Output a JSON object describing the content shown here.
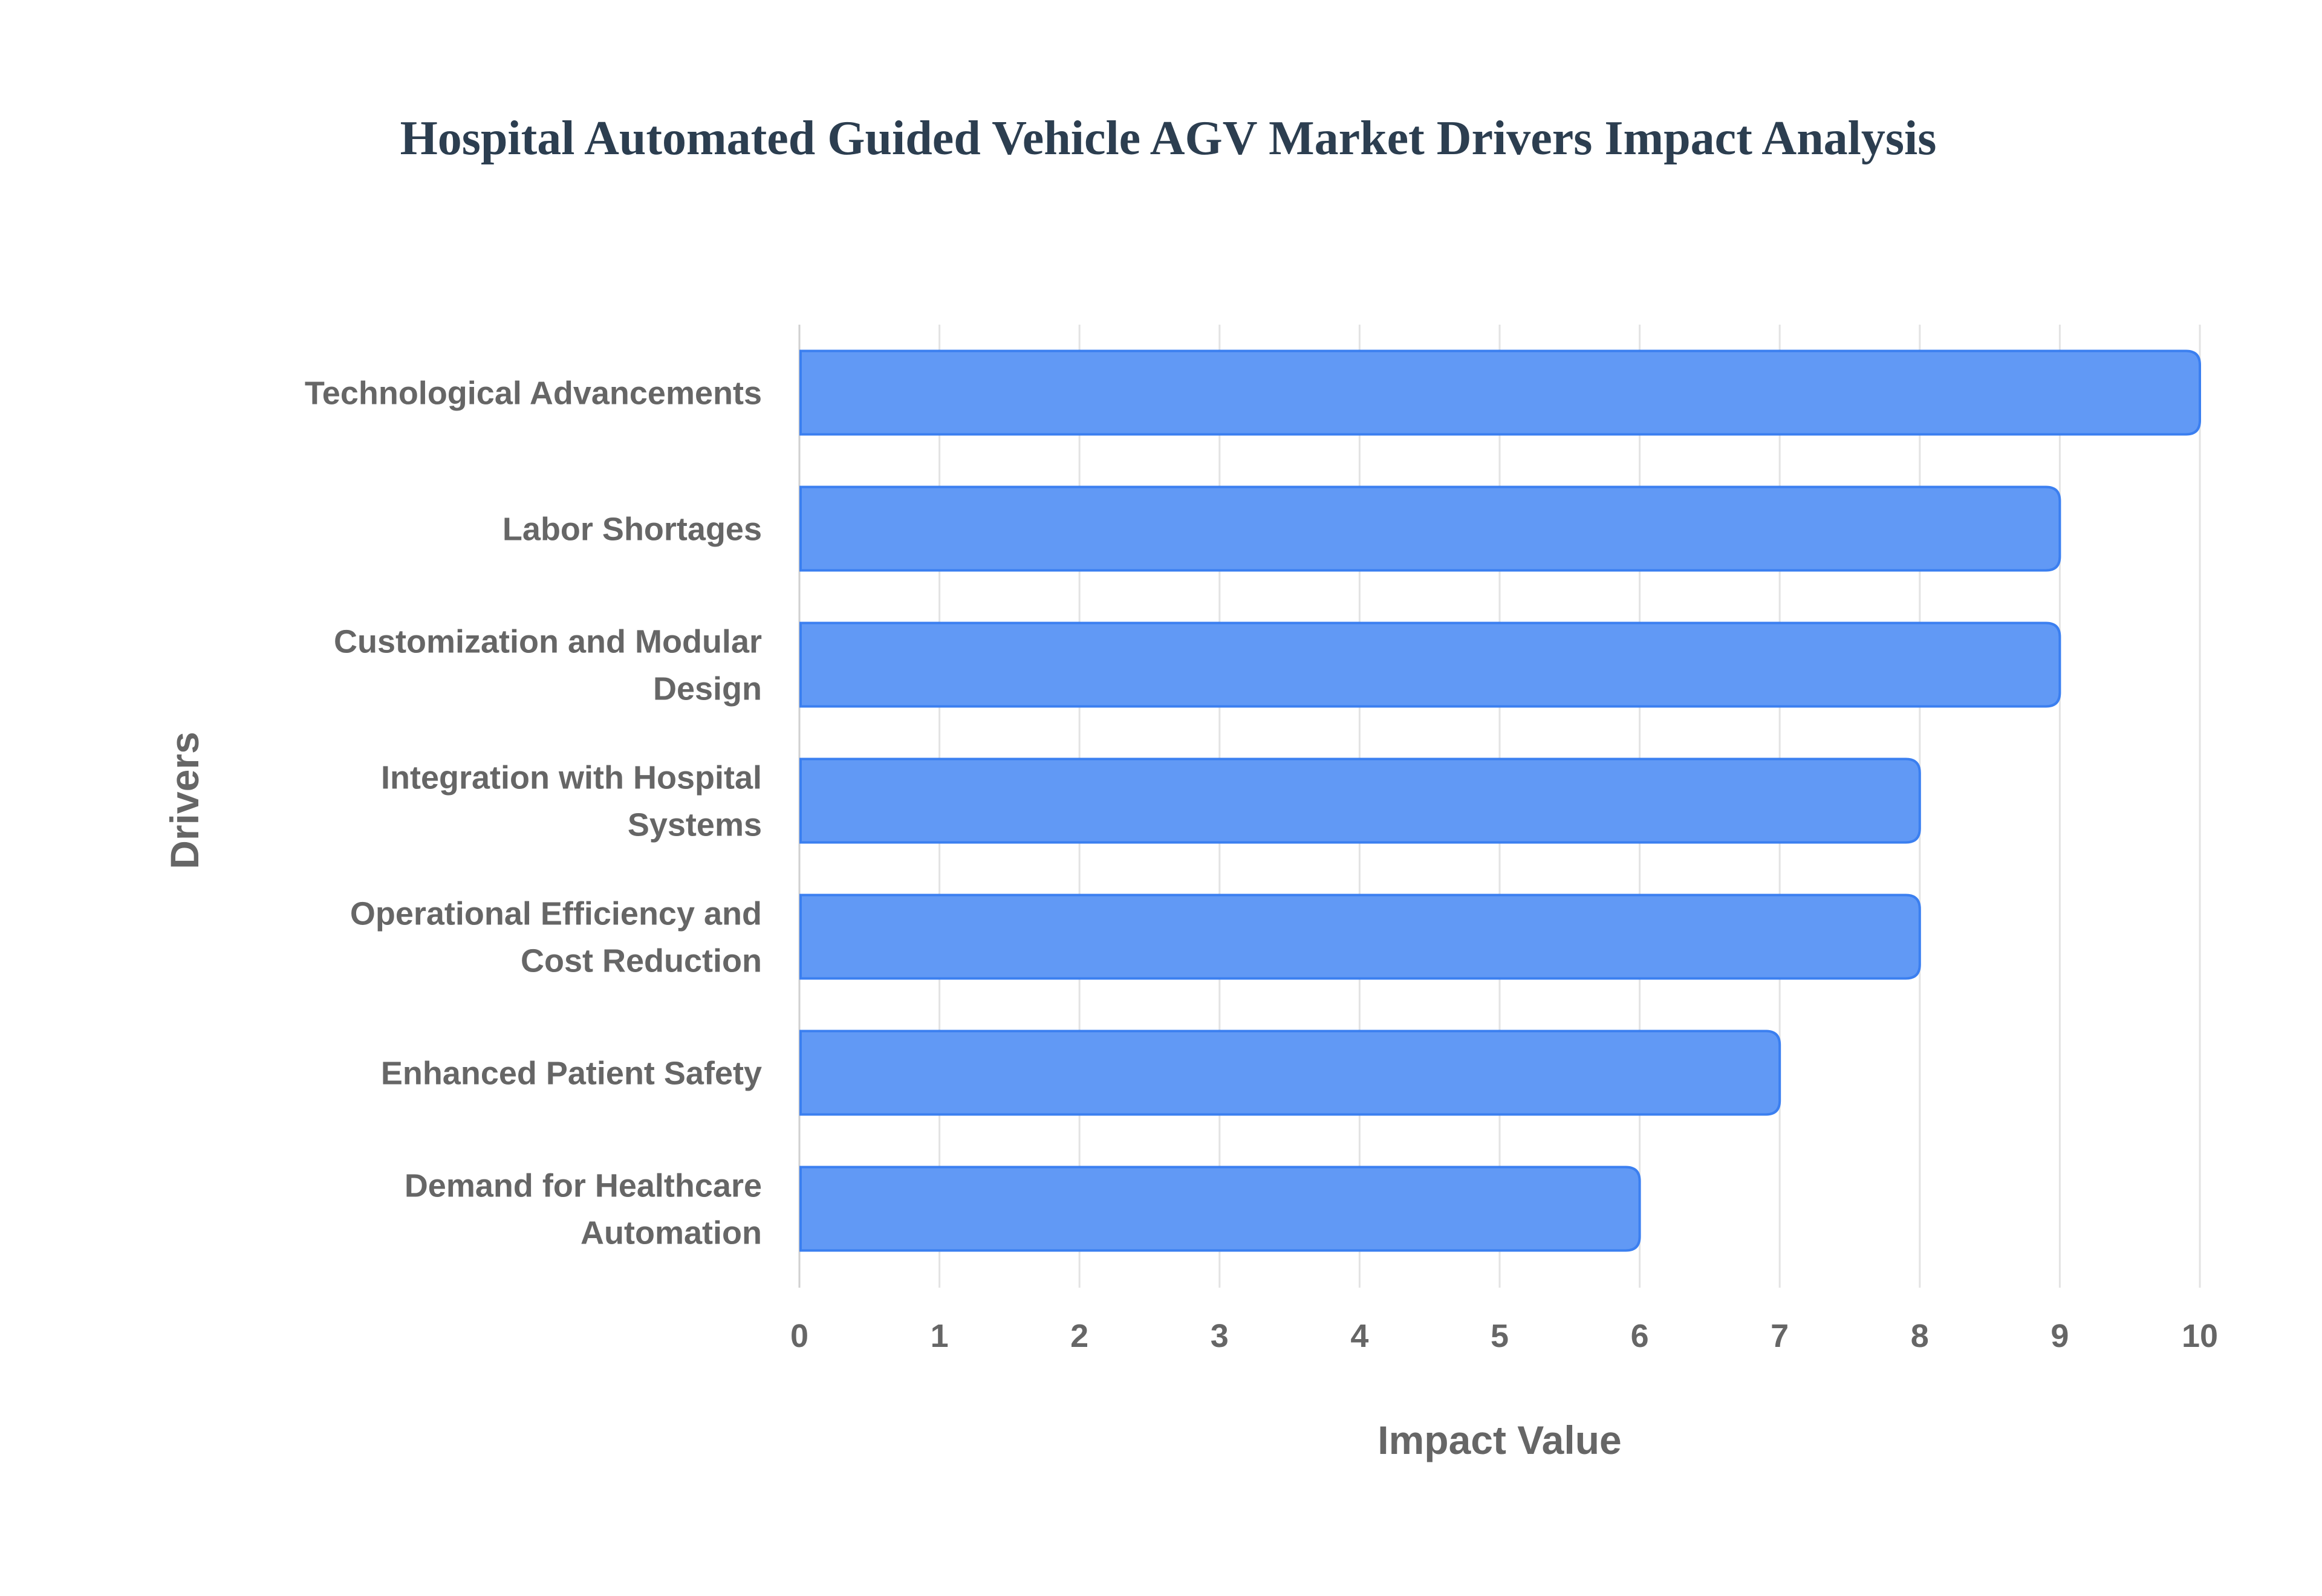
{
  "chart_data": {
    "type": "bar",
    "orientation": "horizontal",
    "title": "Hospital Automated Guided Vehicle AGV Market Drivers Impact Analysis",
    "xlabel": "Impact Value",
    "ylabel": "Drivers",
    "categories": [
      [
        "Technological Advancements"
      ],
      [
        "Labor Shortages"
      ],
      [
        "Customization and Modular",
        "Design"
      ],
      [
        "Integration with Hospital",
        "Systems"
      ],
      [
        "Operational Efficiency and",
        "Cost Reduction"
      ],
      [
        "Enhanced Patient Safety"
      ],
      [
        "Demand for Healthcare",
        "Automation"
      ]
    ],
    "values": [
      10,
      9,
      9,
      8,
      8,
      7,
      6
    ],
    "xlim": [
      0,
      10
    ],
    "xticks": [
      "0",
      "1",
      "2",
      "3",
      "4",
      "5",
      "6",
      "7",
      "8",
      "9",
      "10"
    ],
    "grid": true,
    "colors": {
      "bar_fill": "#6199f5",
      "bar_border": "#3b7ff0",
      "grid": "#e3e3e3"
    }
  }
}
